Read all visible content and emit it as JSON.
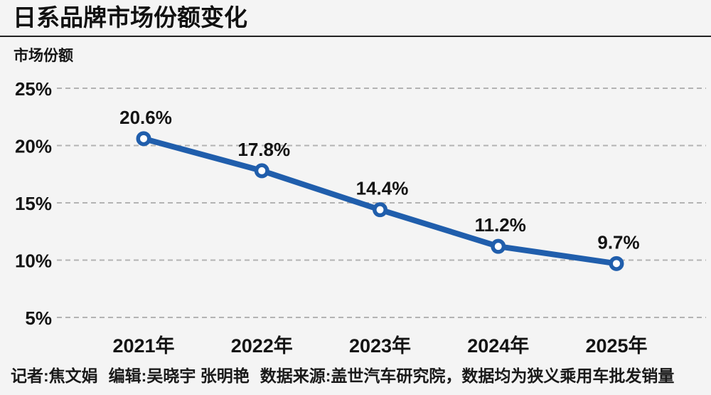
{
  "title": "日系品牌市场份额变化",
  "chart_data": {
    "type": "line",
    "title": "日系品牌市场份额变化",
    "ylabel": "市场份额",
    "xlabel": "",
    "categories": [
      "2021年",
      "2022年",
      "2023年",
      "2024年",
      "2025年"
    ],
    "values": [
      20.6,
      17.8,
      14.4,
      11.2,
      9.7
    ],
    "point_labels": [
      "20.6%",
      "17.8%",
      "14.4%",
      "11.2%",
      "9.7%"
    ],
    "yticks": [
      25,
      20,
      15,
      10,
      5
    ],
    "ytick_labels": [
      "25%",
      "20%",
      "15%",
      "10%",
      "5%"
    ],
    "ylim": [
      5,
      25
    ],
    "grid": "horizontal-dashed",
    "legend": "none",
    "line_color": "#205eac",
    "marker_style": "open-circle-white-fill",
    "gridline_color": "#b3b3b3",
    "background_color": "#f4f4f4"
  },
  "footer": {
    "reporter": "记者:焦文娟",
    "editor": "编辑:吴晓宇 张明艳",
    "source": "数据来源:盖世汽车研究院，数据均为狭义乘用车批发销量"
  }
}
